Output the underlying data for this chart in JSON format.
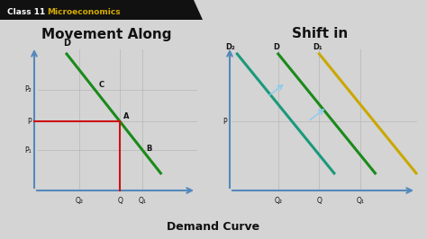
{
  "bg_color": "#d4d4d4",
  "header_bg": "#111111",
  "header_text_white": "Class 11 ",
  "header_text_yellow": "Microeconomics",
  "title_left": "Movement Along",
  "title_right": "Shift in",
  "subtitle": "Demand Curve",
  "axis_color": "#5588bb",
  "grid_color": "#bbbbbb",
  "demand_green": "#1a8a1a",
  "demand_yellow": "#c8a800",
  "demand_teal": "#1a9a7a",
  "red_color": "#cc1111",
  "arrow_color": "#88ccee",
  "text_black": "#111111",
  "yellow_label": "#d4aa00"
}
